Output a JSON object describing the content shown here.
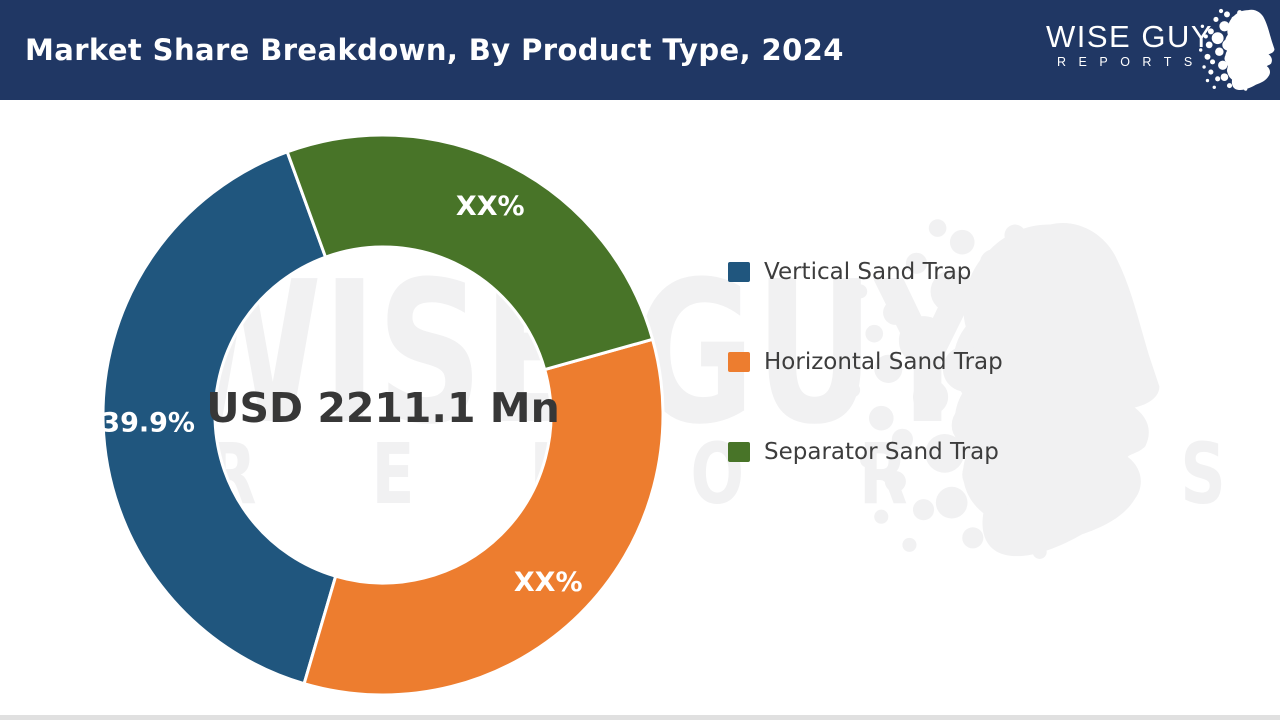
{
  "header": {
    "title": "Market Share Breakdown, By Product Type, 2024"
  },
  "logo": {
    "line1": "WISE GUY",
    "line2": "REPORTS"
  },
  "watermark": {
    "line1": "WISE GUY",
    "line2": "R E P O R T S"
  },
  "colors": {
    "header_bg": "#203764",
    "logo_text": "#FFFFFF",
    "watermark": "#F1F1F2",
    "footer_bar": "#E0E0E0",
    "center_label_text": "#373737",
    "legend_text": "#3D3D3D",
    "percent_label_text": "#FFFFFF"
  },
  "chart_data": {
    "type": "pie",
    "subtype": "donut",
    "title": "Market Share Breakdown, By Product Type, 2024",
    "center_label": "USD 2211.1 Mn",
    "start_angle_deg": 110,
    "direction": "counterclockwise",
    "inner_radius_ratio": 0.6,
    "legend_position": "right",
    "segments": [
      {
        "label": "Vertical Sand Trap",
        "display_value": "39.9%",
        "value_pct": 39.9,
        "color": "#20567E"
      },
      {
        "label": "Horizontal Sand Trap",
        "display_value": "XX%",
        "value_pct": 33.9,
        "color": "#ED7D2F"
      },
      {
        "label": "Separator Sand Trap",
        "display_value": "XX%",
        "value_pct": 26.2,
        "color": "#487428"
      }
    ]
  }
}
